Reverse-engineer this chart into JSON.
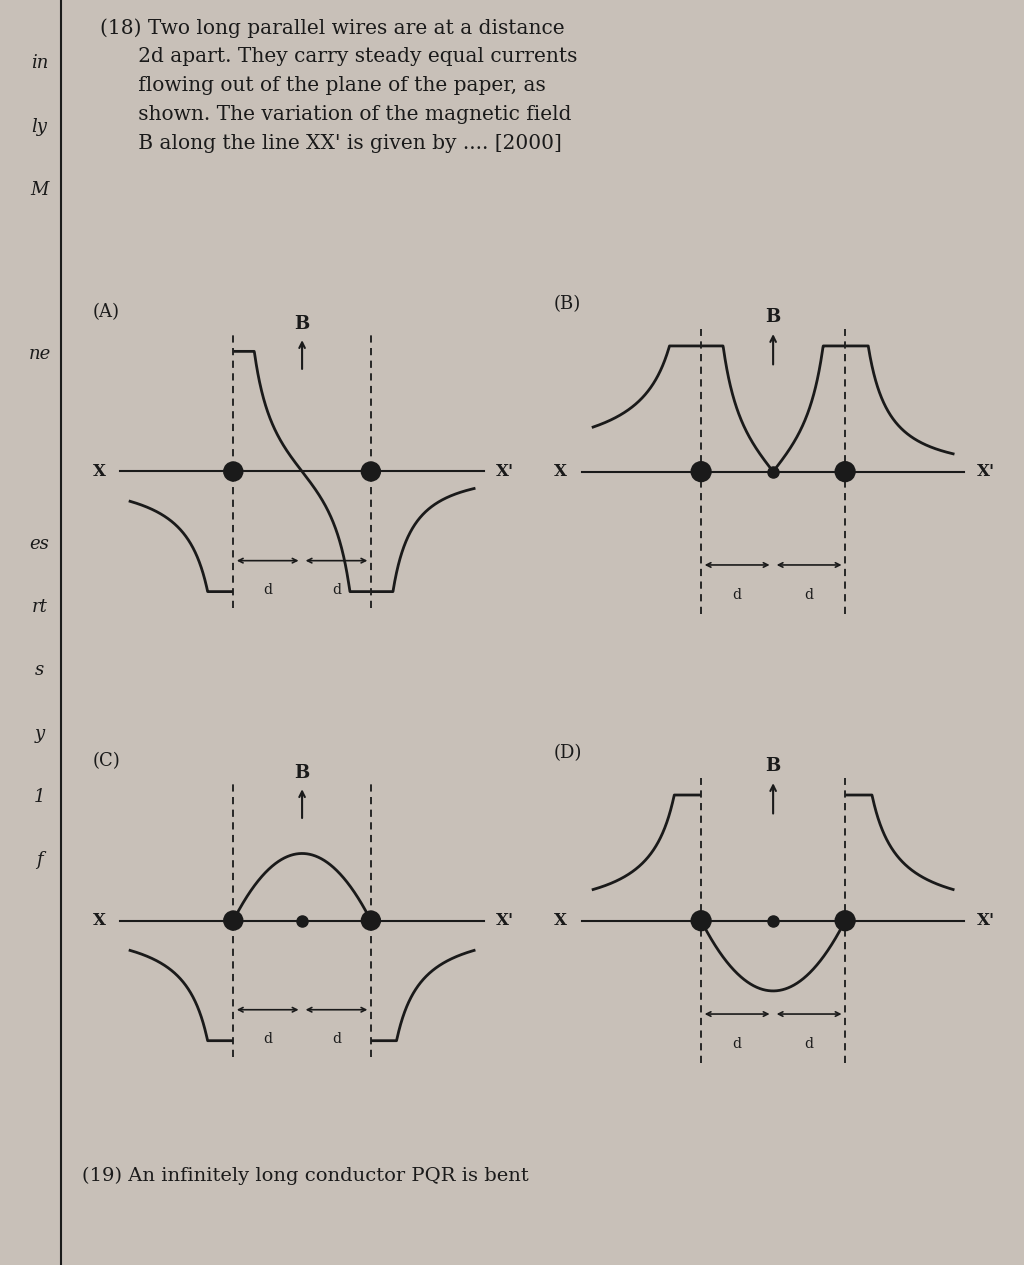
{
  "bg_color": "#c8c0b8",
  "line_color": "#1a1a1a",
  "text_color": "#1a1a1a",
  "sidebar_texts": [
    "in",
    "ly",
    "M",
    "",
    "ne",
    "",
    "es",
    "rt",
    "s",
    "y",
    "1",
    "f"
  ],
  "question_number": "(18)",
  "question_lines": [
    "Two long parallel wires are at a distance",
    "2d apart. They carry steady equal currents",
    "flowing out of the plane of the paper, as",
    "shown. The variation of the magnetic field",
    "B along the line XX' is given by .... [2000]"
  ],
  "footer_text": "(19) An infinitely long conductor PQR is bent",
  "panels": [
    "A",
    "B",
    "C",
    "D"
  ],
  "scale": 0.65,
  "d": 1.0,
  "xleft": -2.5,
  "xright": 2.5,
  "yup": 1.8,
  "ydown": -1.8
}
